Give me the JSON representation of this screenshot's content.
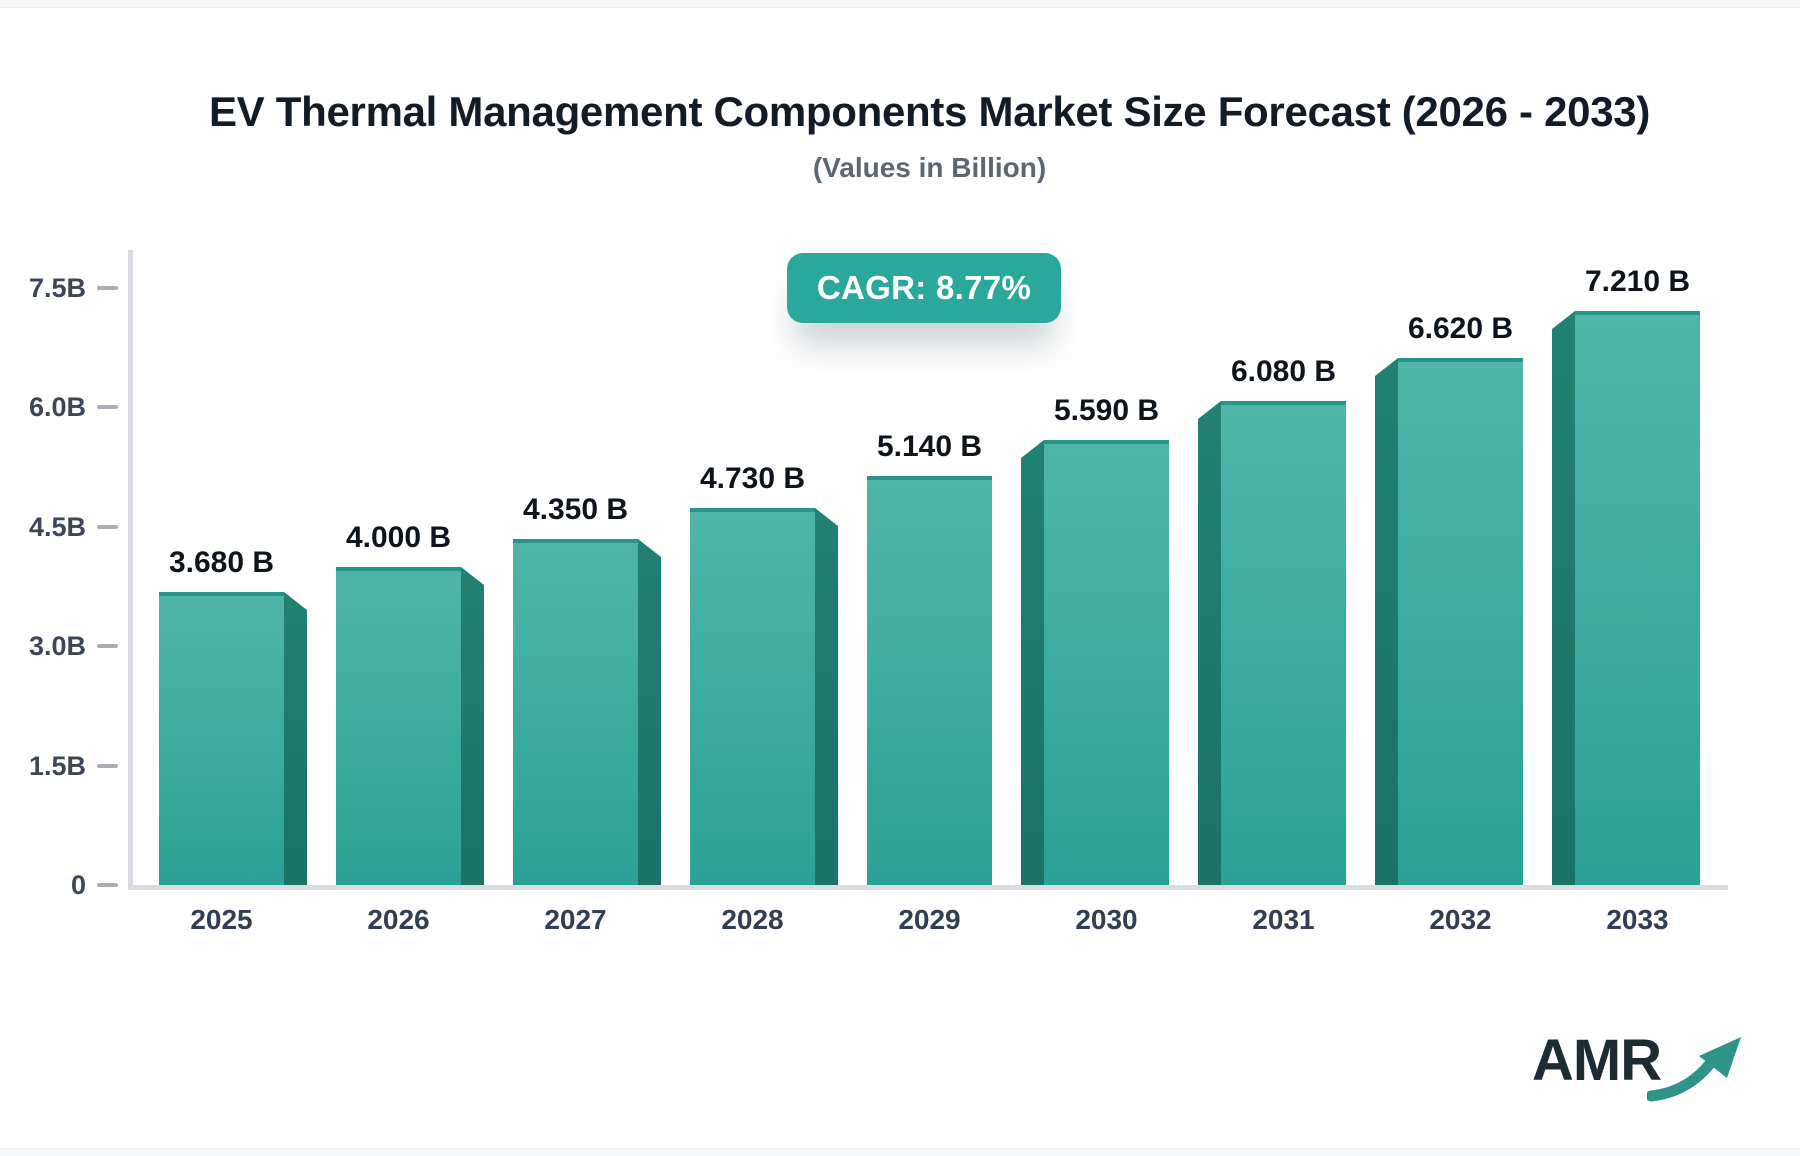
{
  "title": "EV Thermal Management Components Market Size Forecast (2026 - 2033)",
  "subtitle": "(Values in Billion)",
  "cagr": {
    "label": "CAGR: 8.77%",
    "value": "8.77%"
  },
  "logo": {
    "text": "AMR"
  },
  "colors": {
    "accent": "#2aa89c",
    "bar_face_top": "#50b5a9",
    "bar_face_bottom": "#2aa295",
    "bar_top_edge": "#27948a",
    "bar_side": "#1f7d70",
    "axis_line": "#d9dde1",
    "tick": "#a7aeb8",
    "axis_label": "#3c4658",
    "value_label": "#0e141c",
    "year_label": "#313e54",
    "logo_text": "#1d2b33",
    "logo_arrow": "#2e9488"
  },
  "chart_data": {
    "type": "bar",
    "title": "EV Thermal Management Components Market Size Forecast (2026 - 2033)",
    "subtitle": "(Values in Billion)",
    "cagr": "8.77%",
    "categories": [
      "2025",
      "2026",
      "2027",
      "2028",
      "2029",
      "2030",
      "2031",
      "2032",
      "2033"
    ],
    "values": [
      3.68,
      4.0,
      4.35,
      4.73,
      5.14,
      5.59,
      6.08,
      6.62,
      7.21
    ],
    "value_labels": [
      "3.680 B",
      "4.000 B",
      "4.350 B",
      "4.730 B",
      "5.140 B",
      "5.590 B",
      "6.080 B",
      "6.620 B",
      "7.210 B"
    ],
    "yticks": [
      {
        "label": "7.5B",
        "value": 7.5
      },
      {
        "label": "6.0B",
        "value": 6.0
      },
      {
        "label": "4.5B",
        "value": 4.5
      },
      {
        "label": "3.0B",
        "value": 3.0
      },
      {
        "label": "1.5B",
        "value": 1.5
      },
      {
        "label": "0",
        "value": 0.0
      }
    ],
    "ylim": [
      0,
      7.5
    ],
    "xlabel": "",
    "ylabel": "",
    "grid": false,
    "legend": "none"
  }
}
